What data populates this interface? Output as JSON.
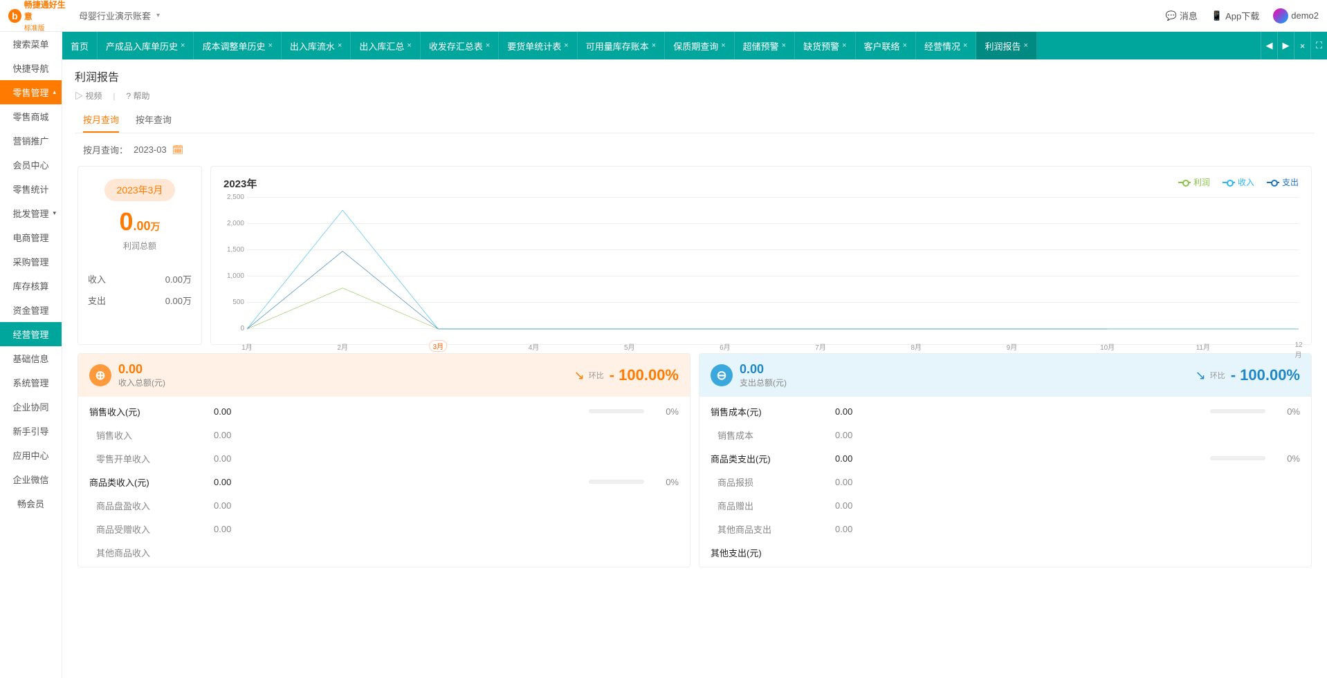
{
  "brand": {
    "name": "畅捷通好生意",
    "edition": "标准版"
  },
  "account_selector": "母婴行业演示账套",
  "topbar": {
    "msg": "消息",
    "download": "App下载",
    "user": "demo2"
  },
  "sidebar": [
    {
      "label": "搜索菜单"
    },
    {
      "label": "快捷导航"
    },
    {
      "label": "零售管理",
      "active": true,
      "expand": true
    },
    {
      "label": "零售商城",
      "child": true
    },
    {
      "label": "营销推广",
      "child": true
    },
    {
      "label": "会员中心",
      "child": true
    },
    {
      "label": "零售统计",
      "child": true
    },
    {
      "label": "批发管理",
      "expand": true
    },
    {
      "label": "电商管理"
    },
    {
      "label": "采购管理"
    },
    {
      "label": "库存核算"
    },
    {
      "label": "资金管理"
    },
    {
      "label": "经营管理",
      "highlight": true
    },
    {
      "label": "基础信息"
    },
    {
      "label": "系统管理"
    },
    {
      "label": "企业协同"
    },
    {
      "label": "新手引导"
    },
    {
      "label": "应用中心"
    },
    {
      "label": "企业微信"
    },
    {
      "label": "畅会员"
    }
  ],
  "tabs": [
    {
      "label": "首页",
      "closable": false
    },
    {
      "label": "产成品入库单历史",
      "closable": true
    },
    {
      "label": "成本调整单历史",
      "closable": true
    },
    {
      "label": "出入库流水",
      "closable": true
    },
    {
      "label": "出入库汇总",
      "closable": true
    },
    {
      "label": "收发存汇总表",
      "closable": true
    },
    {
      "label": "要货单统计表",
      "closable": true
    },
    {
      "label": "可用量库存账本",
      "closable": true
    },
    {
      "label": "保质期查询",
      "closable": true
    },
    {
      "label": "超储预警",
      "closable": true
    },
    {
      "label": "缺货预警",
      "closable": true
    },
    {
      "label": "客户联络",
      "closable": true
    },
    {
      "label": "经营情况",
      "closable": true
    },
    {
      "label": "利润报告",
      "closable": true,
      "active": true
    }
  ],
  "page": {
    "title": "利润报告",
    "link_video": "视频",
    "link_help": "帮助",
    "subtabs": {
      "by_month": "按月查询",
      "by_year": "按年查询"
    },
    "filter_label": "按月查询：",
    "filter_value": "2023-03"
  },
  "summary": {
    "period_pill": "2023年3月",
    "big_int": "0",
    "big_dec": ".00",
    "big_unit": "万",
    "big_label": "利润总额",
    "income_label": "收入",
    "income_value": "0.00万",
    "expense_label": "支出",
    "expense_value": "0.00万"
  },
  "chart": {
    "title": "2023年",
    "legend": {
      "profit": "利润",
      "income": "收入",
      "expense": "支出"
    },
    "colors": {
      "profit": "#8bc34a",
      "income": "#29b6f6",
      "expense": "#1e72b8",
      "grid": "#eeeeee",
      "bg": "#ffffff"
    },
    "y_ticks": [
      0,
      500,
      1000,
      1500,
      2000,
      2500
    ],
    "y_max": 2500,
    "x_labels": [
      "1月",
      "2月",
      "3月",
      "4月",
      "5月",
      "6月",
      "7月",
      "8月",
      "9月",
      "10月",
      "11月",
      "12月"
    ],
    "highlight_x_index": 2,
    "series": {
      "profit": [
        0,
        780,
        0,
        0,
        0,
        0,
        0,
        0,
        0,
        0,
        0,
        0
      ],
      "income": [
        0,
        2260,
        0,
        0,
        0,
        0,
        0,
        0,
        0,
        0,
        0,
        0
      ],
      "expense": [
        0,
        1480,
        0,
        0,
        0,
        0,
        0,
        0,
        0,
        0,
        0,
        0
      ]
    },
    "expense_truncate_at_index": 9
  },
  "income_panel": {
    "head_value": "0.00",
    "head_label": "收入总额(元)",
    "pct": "- 100.00%",
    "hb": "环比",
    "rows": [
      {
        "name": "销售收入(元)",
        "val": "0.00",
        "pct": "0%",
        "bold": true,
        "bar": true
      },
      {
        "name": "销售收入",
        "val": "0.00",
        "sub": true
      },
      {
        "name": "零售开单收入",
        "val": "0.00",
        "sub": true
      },
      {
        "name": "商品类收入(元)",
        "val": "0.00",
        "pct": "0%",
        "bold": true,
        "bar": true
      },
      {
        "name": "商品盘盈收入",
        "val": "0.00",
        "sub": true
      },
      {
        "name": "商品受赠收入",
        "val": "0.00",
        "sub": true
      },
      {
        "name": "其他商品收入",
        "val": "",
        "sub": true
      }
    ]
  },
  "expense_panel": {
    "head_value": "0.00",
    "head_label": "支出总额(元)",
    "pct": "- 100.00%",
    "hb": "环比",
    "rows": [
      {
        "name": "销售成本(元)",
        "val": "0.00",
        "pct": "0%",
        "bold": true,
        "bar": true
      },
      {
        "name": "销售成本",
        "val": "0.00",
        "sub": true
      },
      {
        "name": "商品类支出(元)",
        "val": "0.00",
        "pct": "0%",
        "bold": true,
        "bar": true
      },
      {
        "name": "商品报损",
        "val": "0.00",
        "sub": true
      },
      {
        "name": "商品赠出",
        "val": "0.00",
        "sub": true
      },
      {
        "name": "其他商品支出",
        "val": "0.00",
        "sub": true
      },
      {
        "name": "其他支出(元)",
        "val": "",
        "bold": true
      }
    ]
  }
}
